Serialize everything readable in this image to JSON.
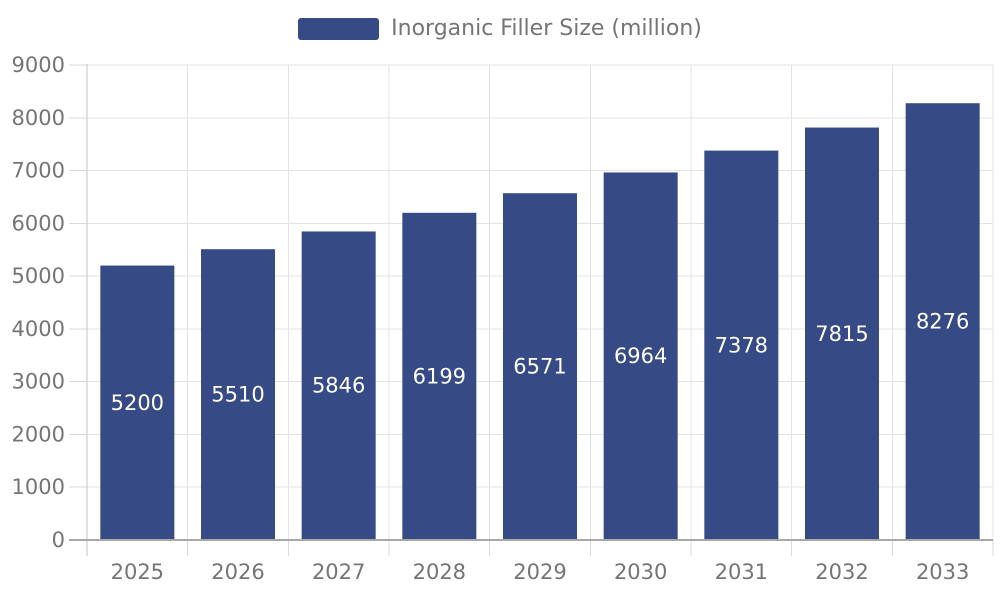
{
  "chart_data": {
    "type": "bar",
    "title": "",
    "legend_position": "top",
    "categories": [
      "2025",
      "2026",
      "2027",
      "2028",
      "2029",
      "2030",
      "2031",
      "2032",
      "2033"
    ],
    "series": [
      {
        "name": "Inorganic Filler Size (million)",
        "color": "#364a85",
        "values": [
          5200,
          5510,
          5846,
          6199,
          6571,
          6964,
          7378,
          7815,
          8276
        ]
      }
    ],
    "yticks": [
      0,
      1000,
      2000,
      3000,
      4000,
      5000,
      6000,
      7000,
      8000,
      9000
    ],
    "ylim": [
      0,
      9000
    ],
    "xlabel": "",
    "ylabel": "",
    "grid": true,
    "bar_value_labels_visible": true,
    "colors": {
      "bar": "#364a85",
      "bar_label": "#ffffff",
      "axis_text": "#757575",
      "legend_text": "#757575",
      "gridline": "#e3e3e3",
      "x_axis_line": "#a8a8a8",
      "y_axis_line": "#c0c3cc",
      "tick": "#d9d9d9",
      "background": "#ffffff"
    }
  }
}
